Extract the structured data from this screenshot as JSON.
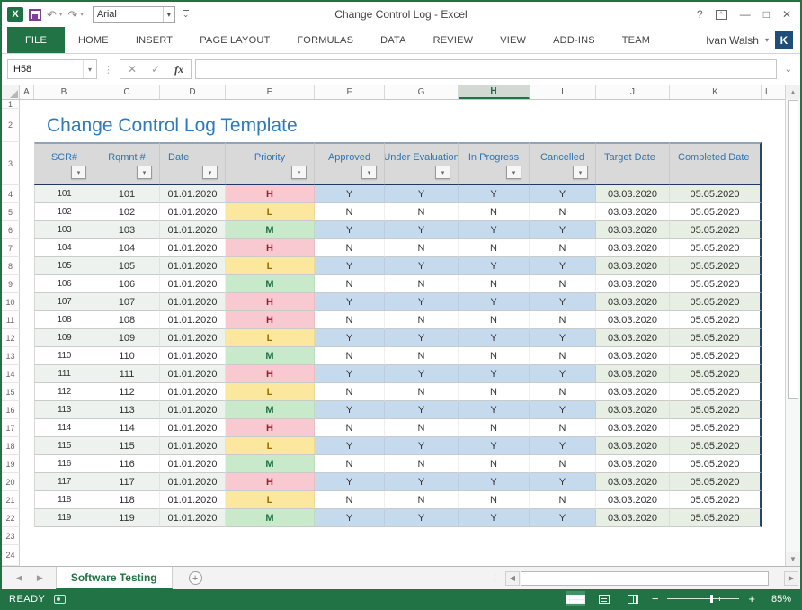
{
  "window": {
    "title": "Change Control Log - Excel",
    "font_selector": "Arial",
    "user_name": "Ivan Walsh",
    "avatar_initial": "K"
  },
  "ribbon": {
    "tabs": [
      {
        "label": "FILE",
        "active": true
      },
      {
        "label": "HOME",
        "active": false
      },
      {
        "label": "INSERT",
        "active": false
      },
      {
        "label": "PAGE LAYOUT",
        "active": false
      },
      {
        "label": "FORMULAS",
        "active": false
      },
      {
        "label": "DATA",
        "active": false
      },
      {
        "label": "REVIEW",
        "active": false
      },
      {
        "label": "VIEW",
        "active": false
      },
      {
        "label": "ADD-INS",
        "active": false
      },
      {
        "label": "TEAM",
        "active": false
      }
    ]
  },
  "formula_bar": {
    "name_box": "H58",
    "formula_value": ""
  },
  "grid": {
    "column_letters": [
      "A",
      "B",
      "C",
      "D",
      "E",
      "F",
      "G",
      "H",
      "I",
      "J",
      "K",
      "L"
    ],
    "selected_column": "H",
    "row_numbers": [
      "1",
      "2",
      "3",
      "4",
      "5",
      "6",
      "7",
      "8",
      "9",
      "10",
      "11",
      "12",
      "13",
      "14",
      "15",
      "16",
      "17",
      "18",
      "19",
      "20",
      "21",
      "22",
      "23",
      "24"
    ]
  },
  "sheet": {
    "page_title": "Change Control Log Template",
    "table": {
      "headers": [
        {
          "label": "SCR#",
          "filter": true,
          "align": "center"
        },
        {
          "label": "Rqmnt #",
          "filter": true,
          "align": "center"
        },
        {
          "label": "Date",
          "filter": true,
          "align": "left"
        },
        {
          "label": "Priority",
          "filter": true,
          "align": "center"
        },
        {
          "label": "Approved",
          "filter": true,
          "align": "center"
        },
        {
          "label": "Under Evaluation",
          "filter": true,
          "align": "center"
        },
        {
          "label": "In Progress",
          "filter": true,
          "align": "center"
        },
        {
          "label": "Cancelled",
          "filter": true,
          "align": "center"
        },
        {
          "label": "Target Date",
          "filter": false,
          "align": "left"
        },
        {
          "label": "Completed Date",
          "filter": false,
          "align": "left"
        }
      ],
      "rows": [
        {
          "scr": "101",
          "rqmnt": "101",
          "date": "01.01.2020",
          "priority": "H",
          "approved": "Y",
          "under_evaluation": "Y",
          "in_progress": "Y",
          "cancelled": "Y",
          "target_date": "03.03.2020",
          "completed_date": "05.05.2020"
        },
        {
          "scr": "102",
          "rqmnt": "102",
          "date": "01.01.2020",
          "priority": "L",
          "approved": "N",
          "under_evaluation": "N",
          "in_progress": "N",
          "cancelled": "N",
          "target_date": "03.03.2020",
          "completed_date": "05.05.2020"
        },
        {
          "scr": "103",
          "rqmnt": "103",
          "date": "01.01.2020",
          "priority": "M",
          "approved": "Y",
          "under_evaluation": "Y",
          "in_progress": "Y",
          "cancelled": "Y",
          "target_date": "03.03.2020",
          "completed_date": "05.05.2020"
        },
        {
          "scr": "104",
          "rqmnt": "104",
          "date": "01.01.2020",
          "priority": "H",
          "approved": "N",
          "under_evaluation": "N",
          "in_progress": "N",
          "cancelled": "N",
          "target_date": "03.03.2020",
          "completed_date": "05.05.2020"
        },
        {
          "scr": "105",
          "rqmnt": "105",
          "date": "01.01.2020",
          "priority": "L",
          "approved": "Y",
          "under_evaluation": "Y",
          "in_progress": "Y",
          "cancelled": "Y",
          "target_date": "03.03.2020",
          "completed_date": "05.05.2020"
        },
        {
          "scr": "106",
          "rqmnt": "106",
          "date": "01.01.2020",
          "priority": "M",
          "approved": "N",
          "under_evaluation": "N",
          "in_progress": "N",
          "cancelled": "N",
          "target_date": "03.03.2020",
          "completed_date": "05.05.2020"
        },
        {
          "scr": "107",
          "rqmnt": "107",
          "date": "01.01.2020",
          "priority": "H",
          "approved": "Y",
          "under_evaluation": "Y",
          "in_progress": "Y",
          "cancelled": "Y",
          "target_date": "03.03.2020",
          "completed_date": "05.05.2020"
        },
        {
          "scr": "108",
          "rqmnt": "108",
          "date": "01.01.2020",
          "priority": "H",
          "approved": "N",
          "under_evaluation": "N",
          "in_progress": "N",
          "cancelled": "N",
          "target_date": "03.03.2020",
          "completed_date": "05.05.2020"
        },
        {
          "scr": "109",
          "rqmnt": "109",
          "date": "01.01.2020",
          "priority": "L",
          "approved": "Y",
          "under_evaluation": "Y",
          "in_progress": "Y",
          "cancelled": "Y",
          "target_date": "03.03.2020",
          "completed_date": "05.05.2020"
        },
        {
          "scr": "110",
          "rqmnt": "110",
          "date": "01.01.2020",
          "priority": "M",
          "approved": "N",
          "under_evaluation": "N",
          "in_progress": "N",
          "cancelled": "N",
          "target_date": "03.03.2020",
          "completed_date": "05.05.2020"
        },
        {
          "scr": "111",
          "rqmnt": "111",
          "date": "01.01.2020",
          "priority": "H",
          "approved": "Y",
          "under_evaluation": "Y",
          "in_progress": "Y",
          "cancelled": "Y",
          "target_date": "03.03.2020",
          "completed_date": "05.05.2020"
        },
        {
          "scr": "112",
          "rqmnt": "112",
          "date": "01.01.2020",
          "priority": "L",
          "approved": "N",
          "under_evaluation": "N",
          "in_progress": "N",
          "cancelled": "N",
          "target_date": "03.03.2020",
          "completed_date": "05.05.2020"
        },
        {
          "scr": "113",
          "rqmnt": "113",
          "date": "01.01.2020",
          "priority": "M",
          "approved": "Y",
          "under_evaluation": "Y",
          "in_progress": "Y",
          "cancelled": "Y",
          "target_date": "03.03.2020",
          "completed_date": "05.05.2020"
        },
        {
          "scr": "114",
          "rqmnt": "114",
          "date": "01.01.2020",
          "priority": "H",
          "approved": "N",
          "under_evaluation": "N",
          "in_progress": "N",
          "cancelled": "N",
          "target_date": "03.03.2020",
          "completed_date": "05.05.2020"
        },
        {
          "scr": "115",
          "rqmnt": "115",
          "date": "01.01.2020",
          "priority": "L",
          "approved": "Y",
          "under_evaluation": "Y",
          "in_progress": "Y",
          "cancelled": "Y",
          "target_date": "03.03.2020",
          "completed_date": "05.05.2020"
        },
        {
          "scr": "116",
          "rqmnt": "116",
          "date": "01.01.2020",
          "priority": "M",
          "approved": "N",
          "under_evaluation": "N",
          "in_progress": "N",
          "cancelled": "N",
          "target_date": "03.03.2020",
          "completed_date": "05.05.2020"
        },
        {
          "scr": "117",
          "rqmnt": "117",
          "date": "01.01.2020",
          "priority": "H",
          "approved": "Y",
          "under_evaluation": "Y",
          "in_progress": "Y",
          "cancelled": "Y",
          "target_date": "03.03.2020",
          "completed_date": "05.05.2020"
        },
        {
          "scr": "118",
          "rqmnt": "118",
          "date": "01.01.2020",
          "priority": "L",
          "approved": "N",
          "under_evaluation": "N",
          "in_progress": "N",
          "cancelled": "N",
          "target_date": "03.03.2020",
          "completed_date": "05.05.2020"
        },
        {
          "scr": "119",
          "rqmnt": "119",
          "date": "01.01.2020",
          "priority": "M",
          "approved": "Y",
          "under_evaluation": "Y",
          "in_progress": "Y",
          "cancelled": "Y",
          "target_date": "03.03.2020",
          "completed_date": "05.05.2020"
        }
      ]
    }
  },
  "sheet_tabs": {
    "tabs": [
      {
        "label": "Software Testing",
        "active": true
      }
    ]
  },
  "status_bar": {
    "mode": "READY",
    "zoom_level": "85%"
  },
  "colors": {
    "excel_green": "#217346",
    "title_blue": "#2c7bc0",
    "header_text_blue": "#2e75b6",
    "header_bg": "#d9d9d9",
    "header_border_navy": "#1f3864",
    "priority_high_bg": "#f8c9d1",
    "priority_low_bg": "#fbe79e",
    "priority_medium_bg": "#c9e9cb",
    "status_yes_bg": "#c6daee",
    "row_tint": "#edf2ee"
  }
}
